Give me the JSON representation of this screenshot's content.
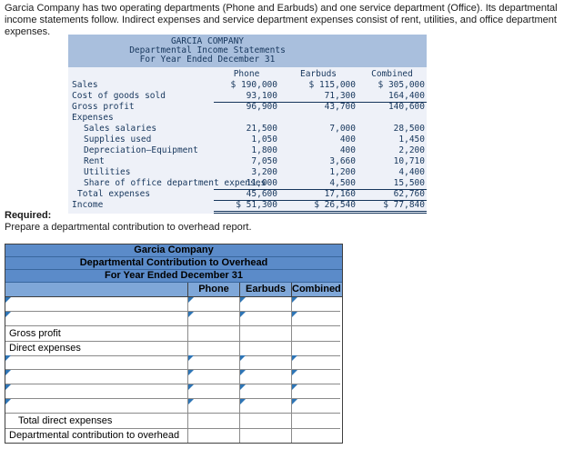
{
  "intro": {
    "text": "Garcia Company has two operating departments (Phone and Earbuds) and one service department (Office). Its departmental income statements follow. Indirect expenses and service department expenses consist of rent, utilities, and office department expenses."
  },
  "income_statement": {
    "titles": [
      "GARCIA COMPANY",
      "Departmental Income Statements",
      "For Year Ended December 31"
    ],
    "columns": [
      "Phone",
      "Earbuds",
      "Combined"
    ],
    "rows": [
      {
        "label": "Sales",
        "phone": "$ 190,000",
        "earbuds": "$ 115,000",
        "combined": "$ 305,000"
      },
      {
        "label": "Cost of goods sold",
        "phone": "93,100",
        "earbuds": "71,300",
        "combined": "164,400"
      },
      {
        "label": "Gross profit",
        "phone": "96,900",
        "earbuds": "43,700",
        "combined": "140,600"
      },
      {
        "label": "Expenses",
        "phone": "",
        "earbuds": "",
        "combined": ""
      },
      {
        "label": "Sales salaries",
        "phone": "21,500",
        "earbuds": "7,000",
        "combined": "28,500"
      },
      {
        "label": "Supplies used",
        "phone": "1,050",
        "earbuds": "400",
        "combined": "1,450"
      },
      {
        "label": "Depreciation—Equipment",
        "phone": "1,800",
        "earbuds": "400",
        "combined": "2,200"
      },
      {
        "label": "Rent",
        "phone": "7,050",
        "earbuds": "3,660",
        "combined": "10,710"
      },
      {
        "label": "Utilities",
        "phone": "3,200",
        "earbuds": "1,200",
        "combined": "4,400"
      },
      {
        "label": "Share of office department expenses",
        "phone": "11,000",
        "earbuds": "4,500",
        "combined": "15,500"
      },
      {
        "label": "Total expenses",
        "phone": "45,600",
        "earbuds": "17,160",
        "combined": "62,760"
      },
      {
        "label": "Income",
        "phone": "$ 51,300",
        "earbuds": "$ 26,540",
        "combined": "$ 77,840"
      }
    ]
  },
  "required": {
    "heading": "Required:",
    "text": "Prepare a departmental contribution to overhead report."
  },
  "worksheet": {
    "titles": [
      "Garcia Company",
      "Departmental Contribution to Overhead",
      "For Year Ended December 31"
    ],
    "columns": [
      "Phone",
      "Earbuds",
      "Combined"
    ],
    "labels": {
      "gross_profit": "Gross profit",
      "direct_expenses": "Direct expenses",
      "total_direct_expenses": "Total direct expenses",
      "contribution": "Departmental contribution to overhead"
    }
  },
  "colors": {
    "statement_header_blue": "#A9BFDD",
    "statement_body": "#EEF1F8",
    "statement_text": "#16365C",
    "worksheet_title_blue": "#5B8BC9",
    "worksheet_colhead_blue": "#7FA7D8",
    "input_marker_blue": "#2E75B6"
  }
}
